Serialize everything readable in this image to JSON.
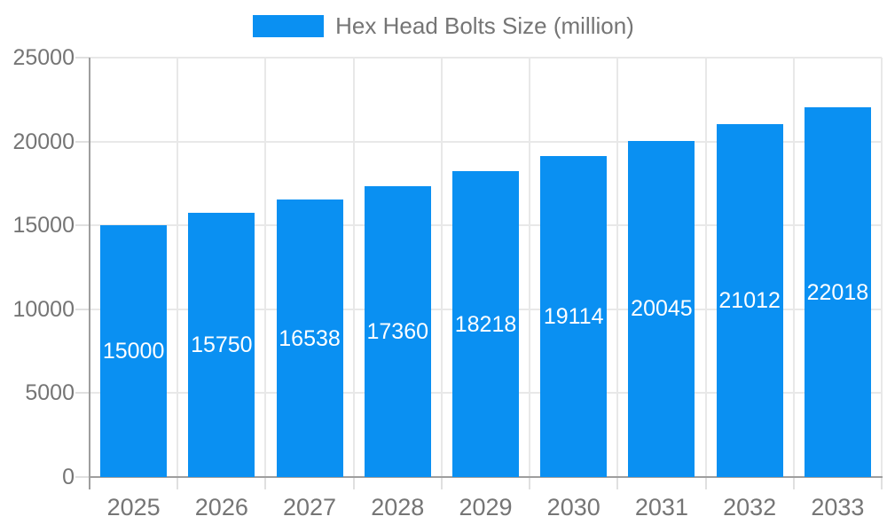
{
  "legend": {
    "label": "Hex Head Bolts Size (million)"
  },
  "chart_data": {
    "type": "bar",
    "title": "Hex Head Bolts Size (million)",
    "categories": [
      "2025",
      "2026",
      "2027",
      "2028",
      "2029",
      "2030",
      "2031",
      "2032",
      "2033"
    ],
    "values": [
      15000,
      15750,
      16538,
      17360,
      18218,
      19114,
      20045,
      21012,
      22018
    ],
    "bar_labels": [
      "15000",
      "15750",
      "16538",
      "17360",
      "18218",
      "19114",
      "20045",
      "21012",
      "22018"
    ],
    "xlabel": "",
    "ylabel": "",
    "ylim": [
      0,
      25000
    ],
    "ytick_step": 5000,
    "yticks": [
      "0",
      "5000",
      "10000",
      "15000",
      "20000",
      "25000"
    ],
    "grid": true,
    "legend_position": "top-center",
    "value_label_position": "inside-middle",
    "colors": {
      "bar": "#0a90f2",
      "grid": "#e8e8e8",
      "axis": "#9e9e9e",
      "tick": "#e0e0e0",
      "text": "#757575",
      "bar_label": "#ffffff",
      "background": "#ffffff"
    }
  }
}
